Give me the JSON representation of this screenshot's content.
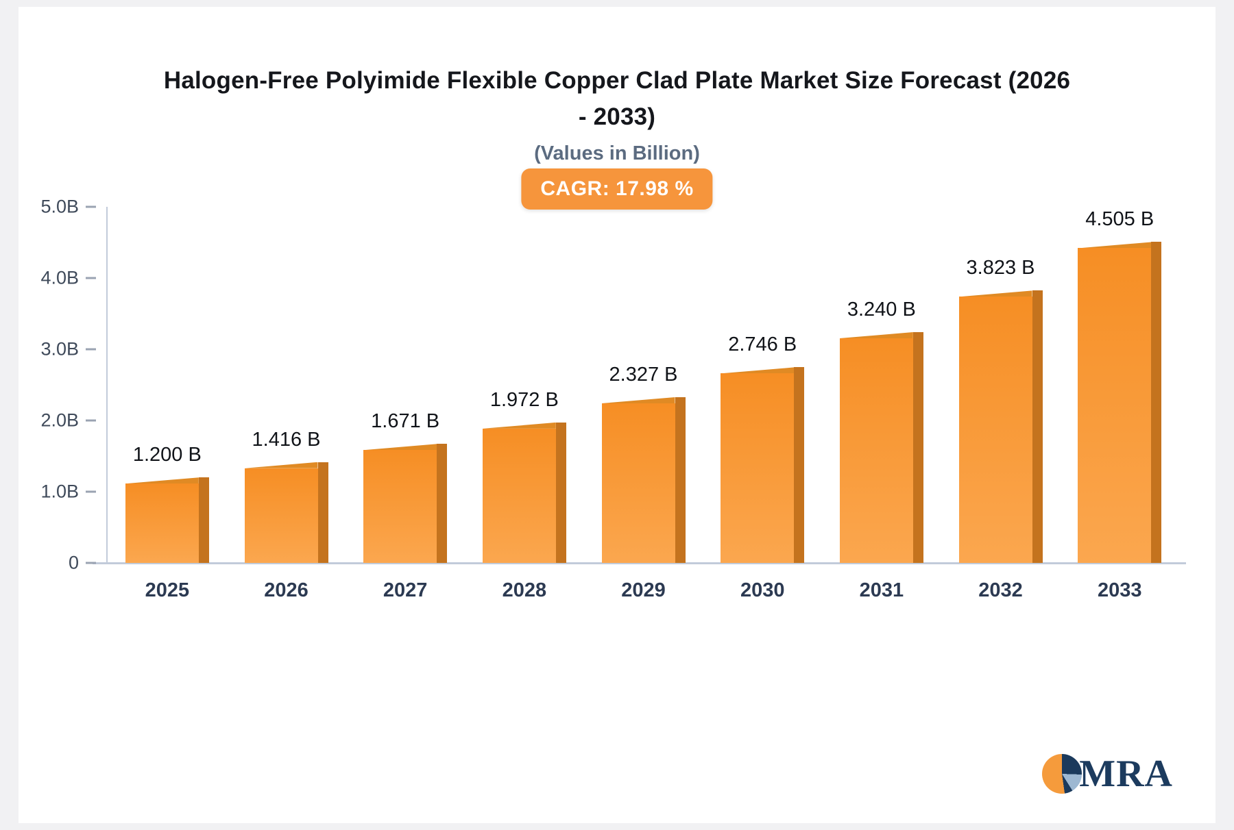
{
  "header": {
    "title": "Halogen-Free Polyimide Flexible Copper Clad Plate Market Size Forecast (2026 - 2033)",
    "subtitle": "(Values in Billion)",
    "cagr_badge": "CAGR: 17.98 %"
  },
  "logo": {
    "text": "MRA"
  },
  "colors": {
    "badge_bg": "#f6953c",
    "bar_main": "#f68e24",
    "bar_main_light": "#fba74f",
    "bar_side": "#c4731e",
    "bar_top": "#e08a24",
    "axis": "#c2cbda",
    "logo_navy": "#1b3a5c",
    "logo_lightblue": "#9db8d2",
    "logo_orange": "#f59b3c"
  },
  "chart_data": {
    "type": "bar",
    "title": "Halogen-Free Polyimide Flexible Copper Clad Plate Market Size Forecast (2026 - 2033)",
    "subtitle": "(Values in Billion)",
    "cagr_percent": 17.98,
    "categories": [
      "2025",
      "2026",
      "2027",
      "2028",
      "2029",
      "2030",
      "2031",
      "2032",
      "2033"
    ],
    "values": [
      1.2,
      1.416,
      1.671,
      1.972,
      2.327,
      2.746,
      3.24,
      3.823,
      4.505
    ],
    "value_labels": [
      "1.200 B",
      "1.416 B",
      "1.671 B",
      "1.972 B",
      "2.327 B",
      "2.746 B",
      "3.240 B",
      "3.823 B",
      "4.505 B"
    ],
    "xlabel": "",
    "ylabel": "",
    "ylim": [
      0,
      5.0
    ],
    "y_ticks": [
      {
        "label": "5.0B",
        "value": 5.0
      },
      {
        "label": "4.0B",
        "value": 4.0
      },
      {
        "label": "3.0B",
        "value": 3.0
      },
      {
        "label": "2.0B",
        "value": 2.0
      },
      {
        "label": "1.0B",
        "value": 1.0
      },
      {
        "label": "0",
        "value": 0.0
      }
    ],
    "grid": false,
    "legend": "none",
    "bar_color": "#f68e24"
  }
}
